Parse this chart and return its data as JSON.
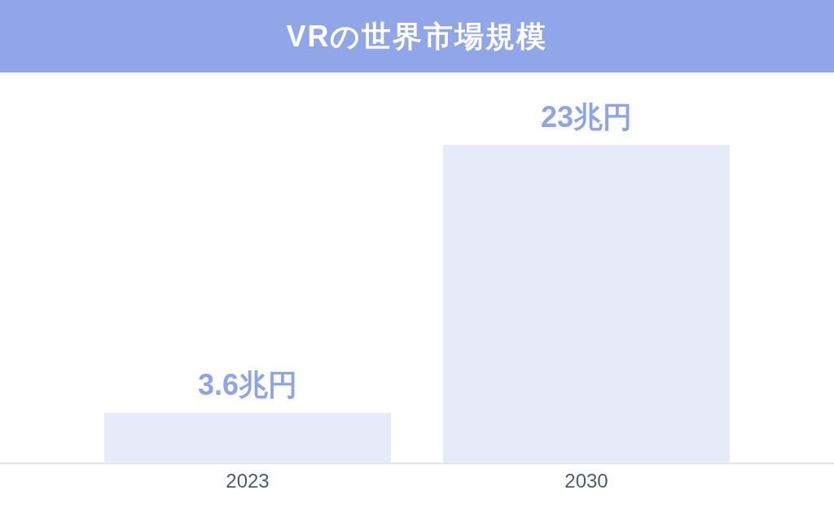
{
  "chart_data": {
    "type": "bar",
    "title": "VRの世界市場規模",
    "categories": [
      "2023",
      "2030"
    ],
    "values": [
      3.6,
      23
    ],
    "color": "#e7ebf9",
    "value_labels": [
      "3.6兆円",
      "23兆円"
    ],
    "tick_labels": "x"
  }
}
